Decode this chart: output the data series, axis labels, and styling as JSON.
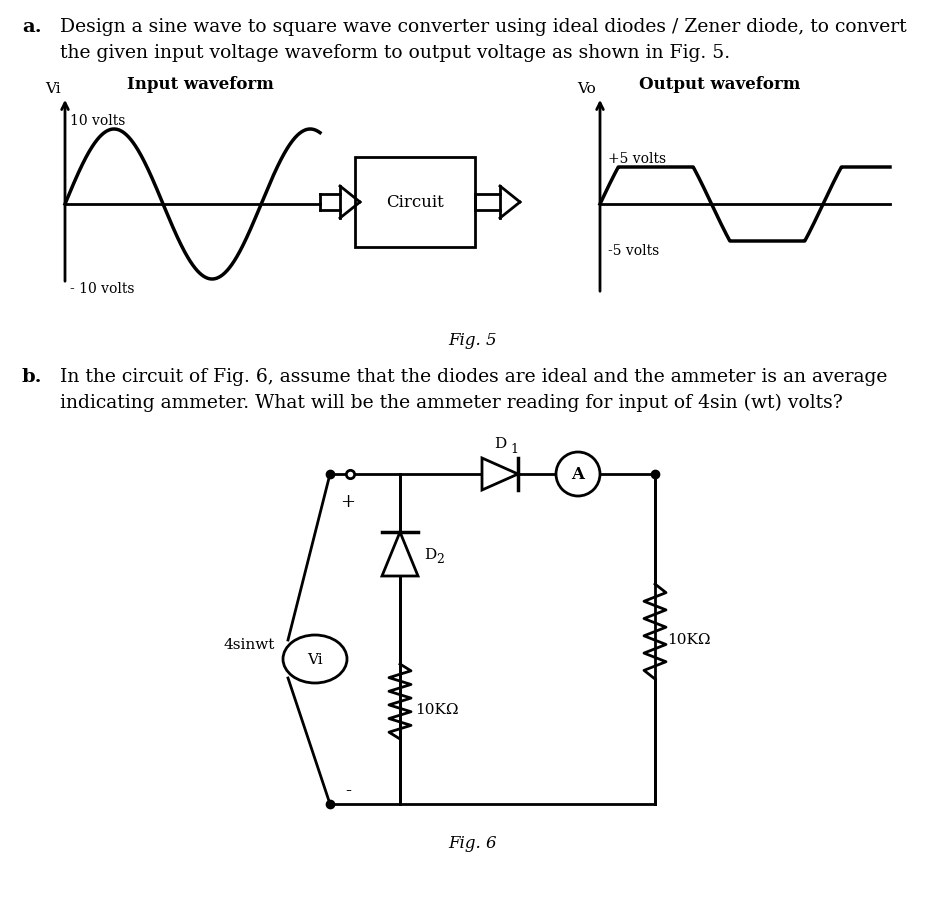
{
  "title_a": "a.",
  "text_a1": "Design a sine wave to square wave converter using ideal diodes / Zener diode, to convert",
  "text_a2": "the given input voltage waveform to output voltage as shown in Fig. 5.",
  "title_b": "b.",
  "text_b1": "In the circuit of Fig. 6, assume that the diodes are ideal and the ammeter is an average",
  "text_b2": "indicating ammeter. What will be the ammeter reading for input of 4sin (wt) volts?",
  "input_waveform_label": "Input waveform",
  "output_waveform_label": "Output waveform",
  "vi_label": "Vi",
  "vo_label": "Vo",
  "plus10": "10 volts",
  "minus10": "- 10 volts",
  "plus5": "+5 volts",
  "minus5": "-5 volts",
  "circuit_label": "Circuit",
  "fig5_label": "Fig. 5",
  "fig6_label": "Fig. 6",
  "d1_label": "D",
  "d1_sub": "1",
  "d2_label": "D",
  "d2_sub": "2",
  "ammeter_label": "A",
  "resistor1_label": "10KΩ",
  "resistor2_label": "10KΩ",
  "source_label": "Vi",
  "source_text": "4sinwt",
  "plus_sign": "+",
  "minus_sign": "-",
  "bg_color": "#ffffff",
  "line_color": "#000000",
  "text_color": "#000000"
}
